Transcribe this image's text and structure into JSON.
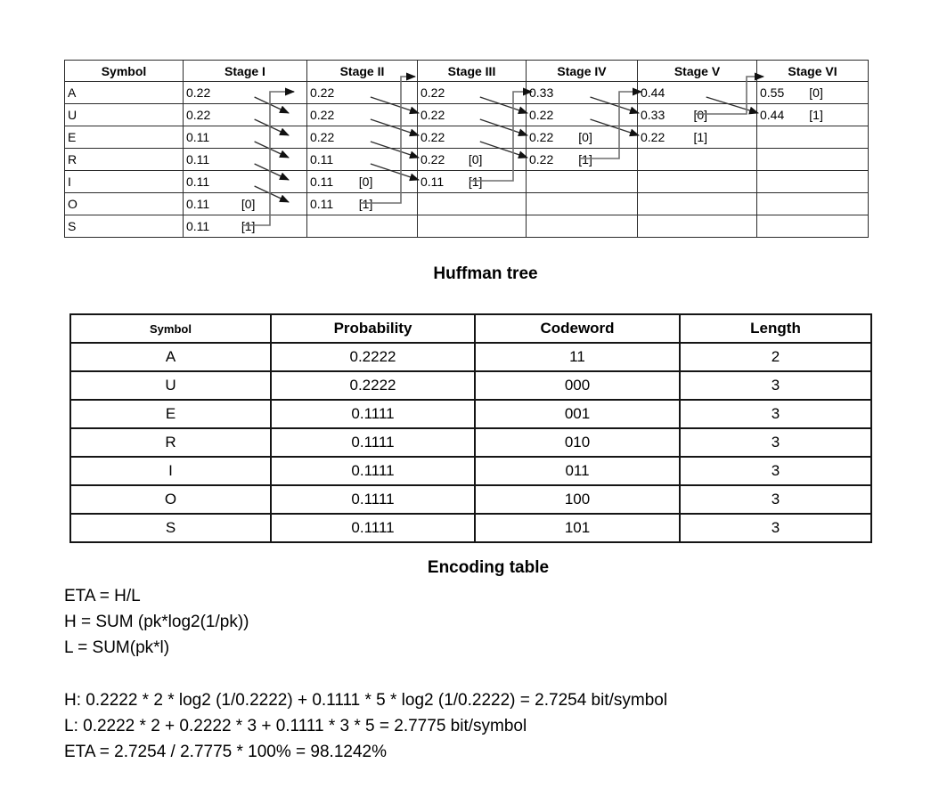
{
  "page": {
    "background": "#ffffff",
    "text_color": "#000000",
    "border_color": "#2b2b2b",
    "arrow_color": "#111111"
  },
  "captions": {
    "huffman_tree": "Huffman tree",
    "encoding_table": "Encoding table"
  },
  "stage_table": {
    "headers": [
      "Symbol",
      "Stage I",
      "Stage II",
      "Stage III",
      "Stage IV",
      "Stage V",
      "Stage VI"
    ],
    "rows": [
      {
        "symbol": "A",
        "stages": [
          {
            "v": "0.22"
          },
          {
            "v": "0.22"
          },
          {
            "v": "0.22"
          },
          {
            "v": "0.33"
          },
          {
            "v": "0.44"
          },
          {
            "v": "0.55",
            "b": "[0]"
          }
        ]
      },
      {
        "symbol": "U",
        "stages": [
          {
            "v": "0.22"
          },
          {
            "v": "0.22"
          },
          {
            "v": "0.22"
          },
          {
            "v": "0.22"
          },
          {
            "v": "0.33",
            "b": "[0]"
          },
          {
            "v": "0.44",
            "b": "[1]"
          }
        ]
      },
      {
        "symbol": "E",
        "stages": [
          {
            "v": "0.11"
          },
          {
            "v": "0.22"
          },
          {
            "v": "0.22"
          },
          {
            "v": "0.22",
            "b": "[0]"
          },
          {
            "v": "0.22",
            "b": "[1]"
          },
          null
        ]
      },
      {
        "symbol": "R",
        "stages": [
          {
            "v": "0.11"
          },
          {
            "v": "0.11"
          },
          {
            "v": "0.22",
            "b": "[0]"
          },
          {
            "v": "0.22",
            "b": "[1]"
          },
          null,
          null
        ]
      },
      {
        "symbol": "I",
        "stages": [
          {
            "v": "0.11"
          },
          {
            "v": "0.11",
            "b": "[0]"
          },
          {
            "v": "0.11",
            "b": "[1]"
          },
          null,
          null,
          null
        ]
      },
      {
        "symbol": "O",
        "stages": [
          {
            "v": "0.11",
            "b": "[0]"
          },
          {
            "v": "0.11",
            "b": "[1]"
          },
          null,
          null,
          null,
          null
        ]
      },
      {
        "symbol": "S",
        "stages": [
          {
            "v": "0.11",
            "b": "[1]"
          },
          null,
          null,
          null,
          null,
          null
        ]
      }
    ]
  },
  "merge_arrows": {
    "diagonals": [
      {
        "stage": 0,
        "from_row": 0
      },
      {
        "stage": 0,
        "from_row": 1
      },
      {
        "stage": 0,
        "from_row": 2
      },
      {
        "stage": 0,
        "from_row": 3
      },
      {
        "stage": 0,
        "from_row": 4
      },
      {
        "stage": 1,
        "from_row": 0
      },
      {
        "stage": 1,
        "from_row": 1
      },
      {
        "stage": 1,
        "from_row": 2
      },
      {
        "stage": 1,
        "from_row": 3
      },
      {
        "stage": 2,
        "from_row": 0
      },
      {
        "stage": 2,
        "from_row": 1
      },
      {
        "stage": 2,
        "from_row": 2
      },
      {
        "stage": 3,
        "from_row": 0
      },
      {
        "stage": 3,
        "from_row": 1
      },
      {
        "stage": 4,
        "from_row": 0
      }
    ],
    "connectors": [
      {
        "stage": 0,
        "from_row": 6,
        "entry": "row"
      },
      {
        "stage": 1,
        "from_row": 5,
        "entry": "header"
      },
      {
        "stage": 2,
        "from_row": 4,
        "entry": "row"
      },
      {
        "stage": 3,
        "from_row": 3,
        "entry": "row"
      },
      {
        "stage": 4,
        "from_row": 1,
        "entry": "header"
      }
    ]
  },
  "encoding_table": {
    "headers": [
      "Symbol",
      "Probability",
      "Codeword",
      "Length"
    ],
    "rows": [
      [
        "A",
        "0.2222",
        "11",
        "2"
      ],
      [
        "U",
        "0.2222",
        "000",
        "3"
      ],
      [
        "E",
        "0.1111",
        "001",
        "3"
      ],
      [
        "R",
        "0.1111",
        "010",
        "3"
      ],
      [
        "I",
        "0.1111",
        "011",
        "3"
      ],
      [
        "O",
        "0.1111",
        "100",
        "3"
      ],
      [
        "S",
        "0.1111",
        "101",
        "3"
      ]
    ]
  },
  "formulas": {
    "lines": [
      "ETA = H/L",
      "H = SUM (pk*log2(1/pk))",
      "L = SUM(pk*l)"
    ]
  },
  "calculations": {
    "lines": [
      "H: 0.2222 * 2 * log2 (1/0.2222) + 0.1111 * 5 * log2 (1/0.2222) = 2.7254 bit/symbol",
      "L: 0.2222 * 2 + 0.2222 * 3 + 0.1111 * 3 * 5 = 2.7775 bit/symbol",
      "ETA = 2.7254 / 2.7775 * 100% = 98.1242%"
    ]
  }
}
